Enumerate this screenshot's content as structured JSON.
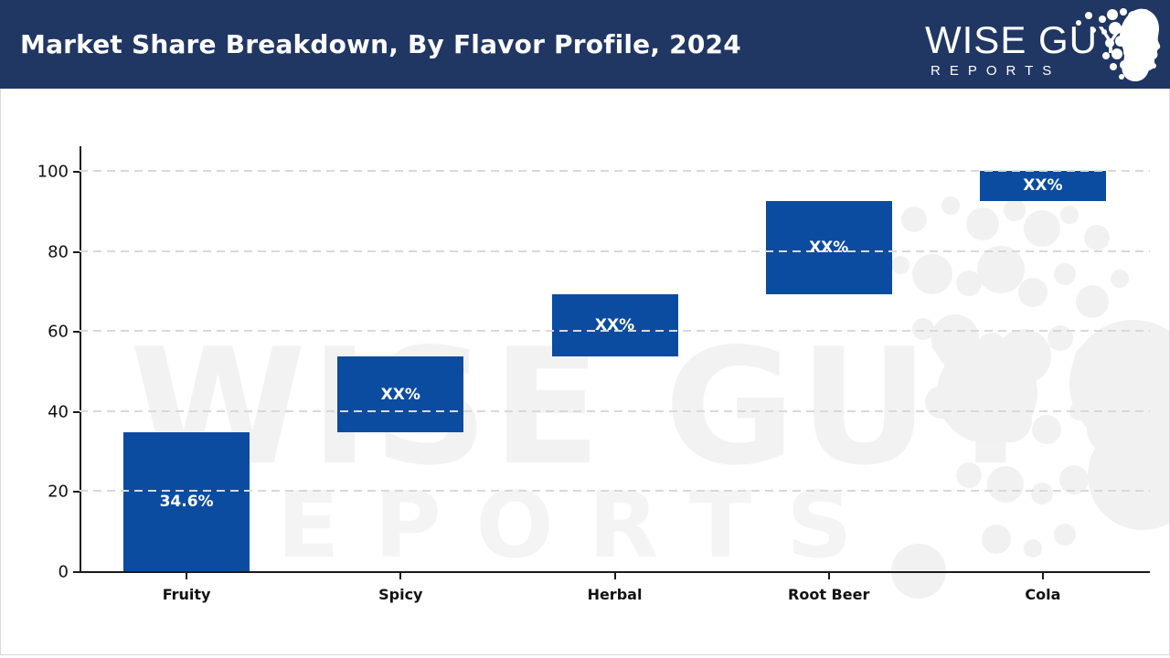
{
  "header": {
    "title": "Market Share Breakdown, By Flavor Profile, 2024",
    "logo": {
      "wordmark": "WISE GUY",
      "subtext": "REPORTS"
    }
  },
  "watermark": {
    "line1": "WISE GUY",
    "line2": "REPORTS"
  },
  "chart_data": {
    "type": "bar",
    "subtype": "floating-waterfall",
    "categories": [
      "Fruity",
      "Spicy",
      "Herbal",
      "Root Beer",
      "Cola"
    ],
    "segments": [
      {
        "category": "Fruity",
        "start": 0,
        "end": 34.6,
        "label": "34.6%"
      },
      {
        "category": "Spicy",
        "start": 34.6,
        "end": 53.6,
        "label": "XX%"
      },
      {
        "category": "Herbal",
        "start": 53.6,
        "end": 69.2,
        "label": "XX%"
      },
      {
        "category": "Root Beer",
        "start": 69.2,
        "end": 92.5,
        "label": "XX%"
      },
      {
        "category": "Cola",
        "start": 92.5,
        "end": 100,
        "label": "XX%"
      }
    ],
    "yticks": [
      0,
      20,
      40,
      60,
      80,
      100
    ],
    "ytick_labels": [
      "0",
      "20",
      "40",
      "60",
      "80",
      "100"
    ],
    "ylim": [
      0,
      106
    ],
    "xlabel": "",
    "ylabel": "",
    "grid": "horizontal-dashed",
    "legend": null,
    "bar_color": "#0c4ca0",
    "bar_label_color": "#ffffff"
  },
  "colors": {
    "header_bg": "#203663",
    "title_text": "#ffffff",
    "bar": "#0c4ca0",
    "axis": "#1a1a1a",
    "grid": "#d9d9d9",
    "watermark": "#f2f2f2",
    "frame_border": "#d9d9d9"
  }
}
